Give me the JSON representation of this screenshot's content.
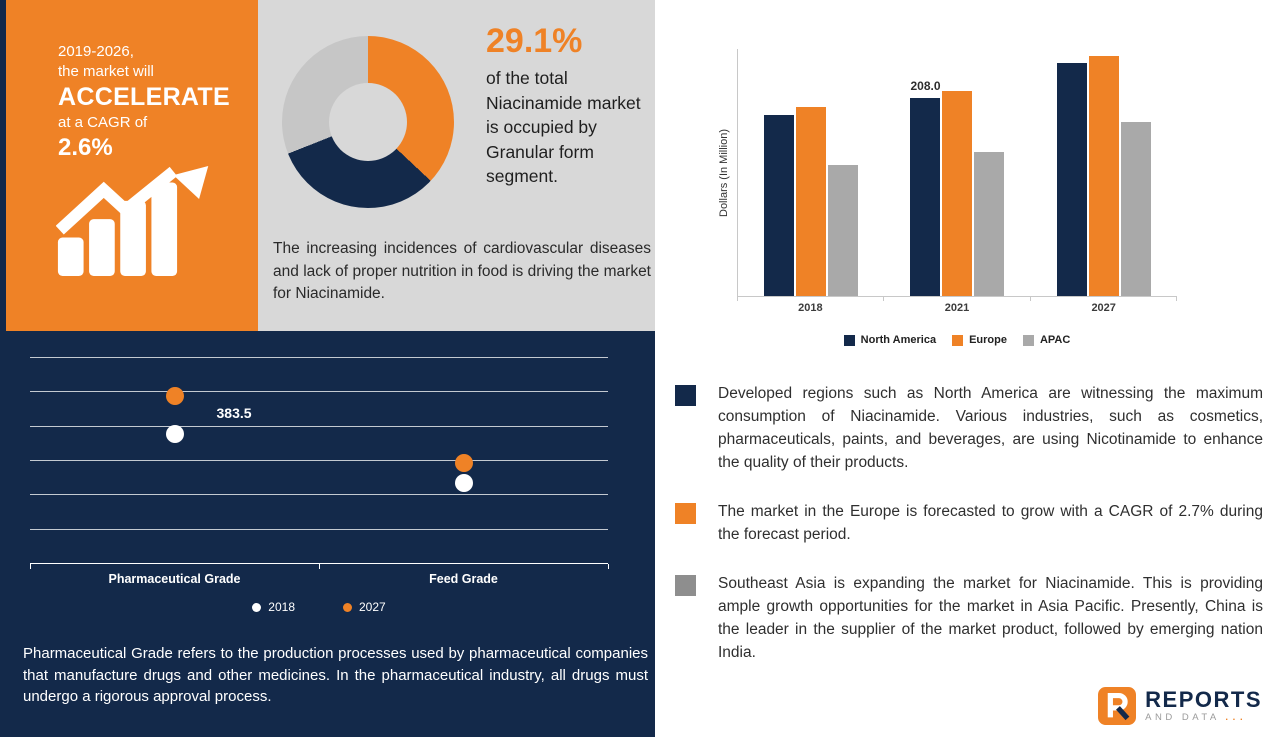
{
  "palette": {
    "orange": "#EF8226",
    "navy": "#13294A",
    "panel_gray": "#D8D8D8",
    "bar_gray": "#A9A9A9",
    "donut_gray": "#C6C6C6",
    "bullet_gray": "#8E8E8E"
  },
  "cagr_panel": {
    "line1": "2019-2026,",
    "line2": "the market will",
    "headline": "ACCELERATE",
    "line3": "at a CAGR of",
    "cagr": "2.6%"
  },
  "form_panel": {
    "highlight": "29.1%",
    "caption": "of the total Niacinamide market is occupied by Granular form segment.",
    "paragraph": "The increasing incidences of cardiovascular diseases and lack of proper nutrition in food is driving the market for Niacinamide."
  },
  "grade_panel": {
    "paragraph": "Pharmaceutical Grade refers to the production processes used by pharmaceutical companies that manufacture drugs and other medicines. In the pharmaceutical industry, all drugs must undergo a rigorous approval process."
  },
  "insights": [
    {
      "color": "#13294A",
      "text": "Developed regions such as North America are witnessing the maximum consumption of Niacinamide. Various industries, such as cosmetics, pharmaceuticals, paints, and beverages, are using Nicotinamide to enhance the quality of their products."
    },
    {
      "color": "#EF8226",
      "text": "The market in the Europe is forecasted to grow with a CAGR of 2.7% during the forecast period."
    },
    {
      "color": "#8E8E8E",
      "text": "Southeast Asia is expanding the market for Niacinamide. This is providing ample growth opportunities for the market in Asia Pacific. Presently, China is the leader in the supplier of the market product, followed by emerging nation India."
    }
  ],
  "logo": {
    "title": "REPORTS",
    "subtitle": "AND DATA",
    "dots": ". . ."
  },
  "chart_data": [
    {
      "id": "form-donut",
      "type": "pie",
      "annotation": "29.1% of the total Niacinamide market is occupied by Granular form segment.",
      "slices": [
        {
          "label": "orange-segment",
          "value": 37,
          "color": "#EF8226"
        },
        {
          "label": "navy-segment",
          "value": 32,
          "color": "#13294A"
        },
        {
          "label": "gray-segment",
          "value": 31,
          "color": "#C6C6C6"
        }
      ]
    },
    {
      "id": "regional-bars",
      "type": "bar",
      "ylabel": "Dollars (In Million)",
      "categories": [
        "2018",
        "2021",
        "2027"
      ],
      "series": [
        {
          "name": "North America",
          "color": "#13294A",
          "values": [
            190,
            208,
            244
          ]
        },
        {
          "name": "Europe",
          "color": "#EF8226",
          "values": [
            198,
            215,
            252
          ]
        },
        {
          "name": "APAC",
          "color": "#A9A9A9",
          "values": [
            137,
            151,
            182
          ]
        }
      ],
      "ylim": [
        0,
        260
      ],
      "grid": false,
      "legend_position": "bottom",
      "data_labels": [
        {
          "series": "North America",
          "category": "2021",
          "text": "208.0"
        }
      ]
    },
    {
      "id": "grade-dotplot",
      "type": "scatter",
      "categories": [
        "Pharmaceutical Grade",
        "Feed Grade"
      ],
      "series": [
        {
          "name": "2018",
          "color": "#FFFFFF",
          "values": [
            353,
            314
          ]
        },
        {
          "name": "2027",
          "color": "#EF8226",
          "values": [
            383.5,
            330
          ]
        }
      ],
      "ylim": [
        250,
        420
      ],
      "grid": true,
      "legend_position": "bottom",
      "data_labels": [
        {
          "series": "2027",
          "category": "Pharmaceutical Grade",
          "text": "383.5"
        }
      ]
    }
  ]
}
